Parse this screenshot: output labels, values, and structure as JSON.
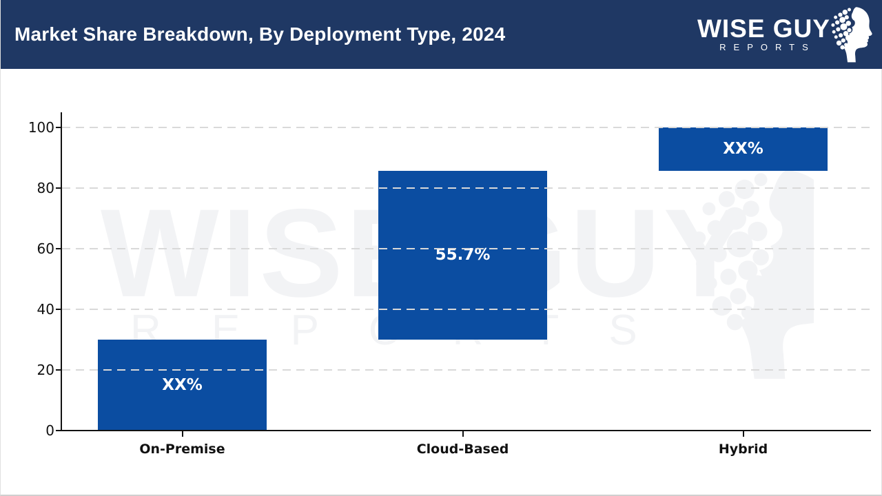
{
  "header": {
    "title": "Market Share Breakdown, By Deployment Type, 2024",
    "logo": {
      "line1": "WISE GUY",
      "line2": "REPORTS"
    }
  },
  "watermark": {
    "line1": "WISE GUY",
    "line2": "R E P O R T S"
  },
  "chart_data": {
    "type": "bar",
    "subtype": "floating-stacked-breakdown",
    "title": "Market Share Breakdown, By Deployment Type, 2024",
    "categories": [
      "On-Premise",
      "Cloud-Based",
      "Hybrid"
    ],
    "bars": [
      {
        "category": "On-Premise",
        "start": 0,
        "end": 30,
        "value": 30,
        "label": "XX%",
        "value_shown": false
      },
      {
        "category": "Cloud-Based",
        "start": 30,
        "end": 85.7,
        "value": 55.7,
        "label": "55.7%",
        "value_shown": true
      },
      {
        "category": "Hybrid",
        "start": 85.7,
        "end": 100,
        "value": 14.3,
        "label": "XX%",
        "value_shown": false
      }
    ],
    "xlabel": "",
    "ylabel": "",
    "ylim": [
      0,
      100
    ],
    "yticks": [
      0,
      20,
      40,
      60,
      80,
      100
    ],
    "grid": "horizontal-dashed",
    "legend": "none"
  },
  "colors": {
    "header_bg": "#1f3864",
    "bar": "#0b4da1",
    "bar_label": "#ffffff",
    "grid": "#d9d9d9",
    "axis": "#111111",
    "tick": "#111111",
    "title": "#ffffff",
    "watermark": "#f2f3f5"
  }
}
